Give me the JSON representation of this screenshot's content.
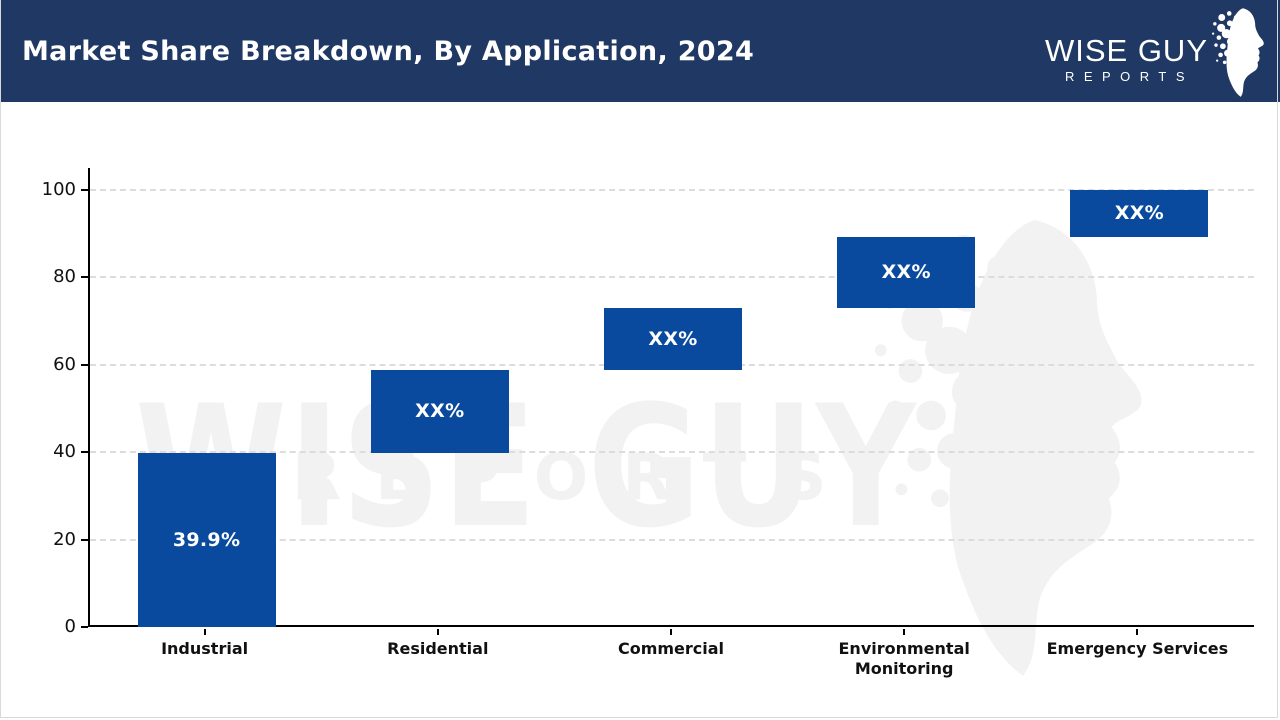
{
  "header": {
    "title": "Market Share Breakdown, By Application, 2024",
    "logo": {
      "name": "WISE GUY",
      "subtitle": "REPORTS"
    }
  },
  "watermark": {
    "line1": "WISE GUY",
    "line2": "REPORTS"
  },
  "chart_data": {
    "type": "bar",
    "subtype": "floating-waterfall",
    "title": "Market Share Breakdown, By Application, 2024",
    "categories": [
      "Industrial",
      "Residential",
      "Commercial",
      "Environmental Monitoring",
      "Emergency Services"
    ],
    "bars": [
      {
        "category": "Industrial",
        "start": 0,
        "end": 39.9,
        "label": "39.9%"
      },
      {
        "category": "Residential",
        "start": 39.9,
        "end": 58.8,
        "label": "XX%"
      },
      {
        "category": "Commercial",
        "start": 58.8,
        "end": 73.0,
        "label": "XX%"
      },
      {
        "category": "Environmental Monitoring",
        "start": 73.0,
        "end": 89.3,
        "label": "XX%"
      },
      {
        "category": "Emergency Services",
        "start": 89.3,
        "end": 100.0,
        "label": "XX%"
      }
    ],
    "xlabel": "",
    "ylabel": "",
    "yticks": [
      0,
      20,
      40,
      60,
      80,
      100
    ],
    "ylim": [
      0,
      105
    ],
    "grid": "horizontal-dashed",
    "legend": "none",
    "colors": {
      "bar": "#0a4a9e",
      "bar_label": "#ffffff",
      "axis": "#000000",
      "grid": "#dcdcdc",
      "header_bg": "#203864",
      "watermark": "#f2f2f2"
    }
  }
}
